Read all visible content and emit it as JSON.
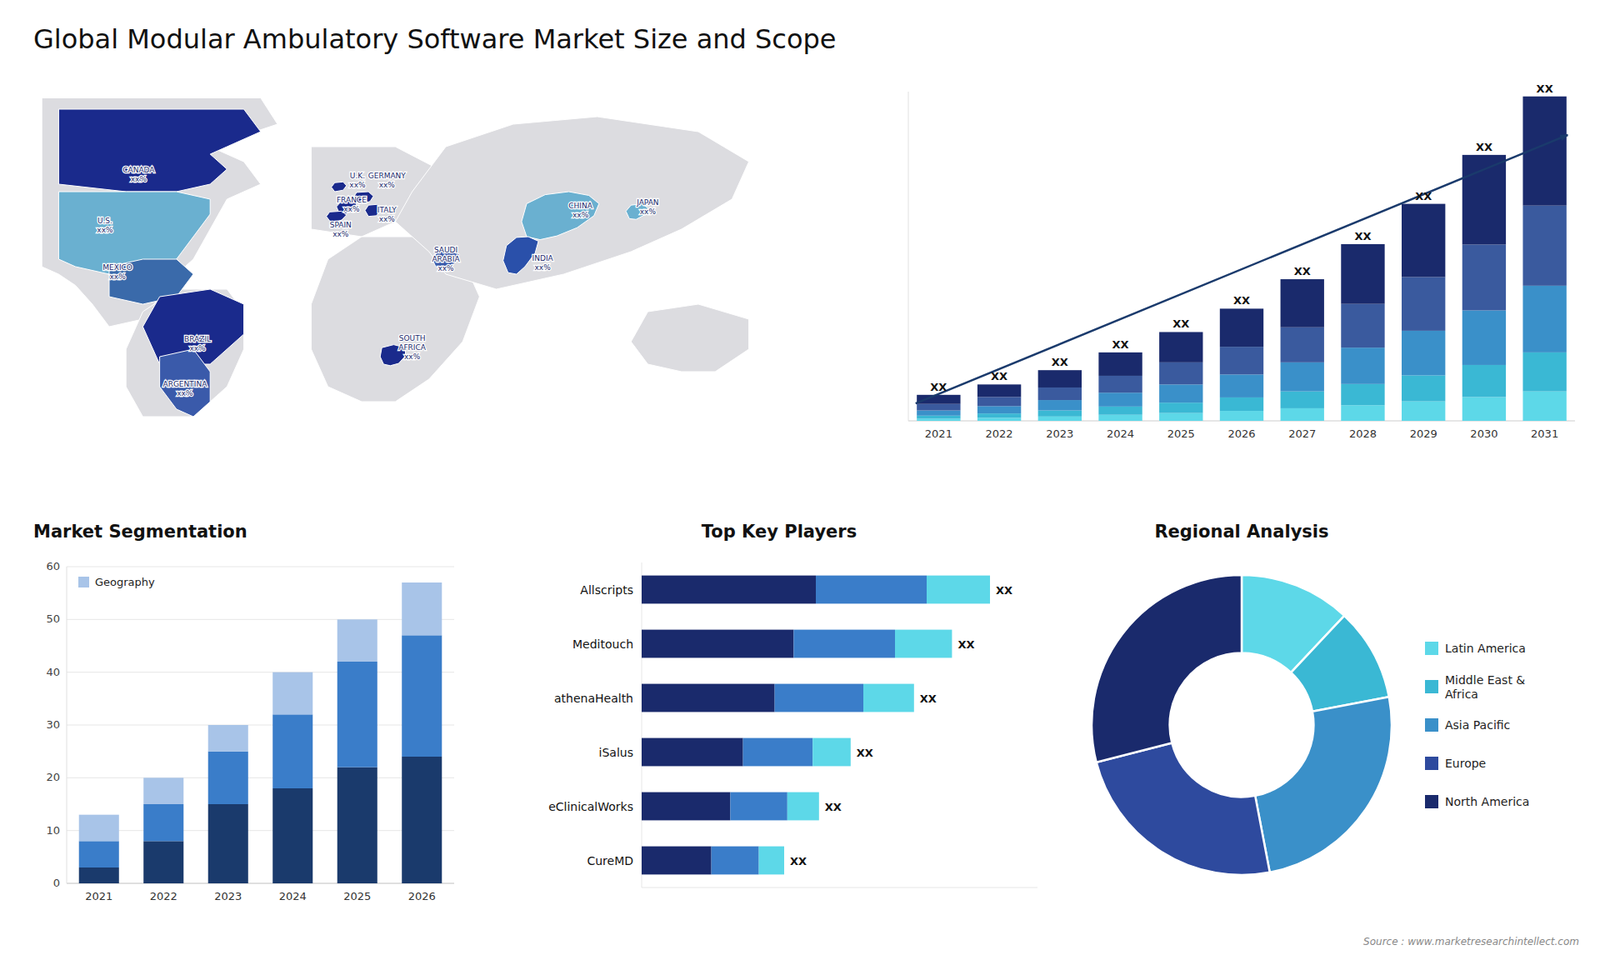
{
  "title": "Global Modular Ambulatory Software Market Size and Scope",
  "annotations": [
    "Source : www.marketresearchintellect.com"
  ],
  "chart_data": [
    {
      "type": "map",
      "labels": [
        "CANADA\nxx%",
        "U.S.\nxx%",
        "MEXICO\nxx%",
        "BRAZIL\nxx%",
        "ARGENTINA\nxx%",
        "U.K.\nxx%",
        "FRANCE\nxx%",
        "SPAIN\nxx%",
        "GERMANY\nxx%",
        "ITALY\nxx%",
        "SAUDI\nARABIA\nxx%",
        "SOUTH\nAFRICA\nxx%",
        "CHINA\nxx%",
        "INDIA\nxx%",
        "JAPAN\nxx%"
      ],
      "colors": [
        "#1a2a8c",
        "#6ab0d0",
        "#3a6aaa",
        "#1a2a8c",
        "#3a5aaa",
        "#1a2a8c",
        "#1a2a8c",
        "#1a2a8c",
        "#1a2a8c",
        "#1a2a8c",
        "#3a5aaa",
        "#1a2a8c",
        "#6ab0d0",
        "#2a50aa",
        "#6ab0d0"
      ]
    },
    {
      "type": "bar",
      "stacked": true,
      "categories": [
        2021,
        2022,
        2023,
        2024,
        2025,
        2026,
        2027,
        2028,
        2029,
        2030,
        2031
      ],
      "series": [
        {
          "color": "#5dd8e8",
          "values": [
            0.5,
            0.7,
            1.0,
            1.4,
            1.8,
            2.3,
            2.9,
            3.6,
            4.5,
            5.5,
            6.8
          ]
        },
        {
          "color": "#3ab8d4",
          "values": [
            0.7,
            1.0,
            1.4,
            1.9,
            2.4,
            3.1,
            3.9,
            4.9,
            6.0,
            7.4,
            9.0
          ]
        },
        {
          "color": "#3a90c9",
          "values": [
            1.2,
            1.7,
            2.4,
            3.2,
            4.2,
            5.3,
            6.7,
            8.4,
            10.3,
            12.6,
            15.4
          ]
        },
        {
          "color": "#3a5a9e",
          "values": [
            1.5,
            2.1,
            2.9,
            3.9,
            5.1,
            6.4,
            8.1,
            10.1,
            12.4,
            15.2,
            18.5
          ]
        },
        {
          "color": "#1a2a6c",
          "values": [
            2.1,
            2.9,
            4.0,
            5.4,
            7.0,
            8.8,
            11.1,
            13.8,
            16.9,
            20.7,
            25.2
          ]
        }
      ],
      "ylim": [
        0,
        76
      ],
      "tick_labels": "x",
      "grid": false,
      "value_labels": [
        "XX",
        "XX",
        "XX",
        "XX",
        "XX",
        "XX",
        "XX",
        "XX",
        "XX",
        "XX",
        "XX"
      ],
      "trend_arrow": {
        "x": [
          -0.38,
          10.38
        ],
        "y": [
          4,
          66
        ]
      }
    },
    {
      "type": "bar",
      "title": "Market Segmentation",
      "stacked": true,
      "categories": [
        2021,
        2022,
        2023,
        2024,
        2025,
        2026
      ],
      "series": [
        {
          "color": "#1a3a6c",
          "values": [
            3,
            8,
            15,
            18,
            22,
            24
          ]
        },
        {
          "color": "#3a7dc9",
          "values": [
            5,
            7,
            10,
            14,
            20,
            23
          ]
        },
        {
          "name": "Geography",
          "color": "#a8c4e8",
          "values": [
            5,
            5,
            5,
            8,
            8,
            10
          ]
        }
      ],
      "ylim": [
        0,
        60
      ],
      "yticks": [
        0,
        10,
        20,
        30,
        40,
        50,
        60
      ],
      "grid": true,
      "legend": "upper left"
    },
    {
      "type": "bar",
      "title": "Top Key Players",
      "orientation": "horizontal",
      "stacked": true,
      "categories": [
        "Allscripts",
        "Meditouch",
        "athenaHealth",
        "iSalus",
        "eClinicalWorks",
        "CureMD"
      ],
      "series": [
        {
          "color": "#1a2a6c",
          "values": [
            5.5,
            4.8,
            4.2,
            3.2,
            2.8,
            2.2
          ]
        },
        {
          "color": "#3a7dc9",
          "values": [
            3.5,
            3.2,
            2.8,
            2.2,
            1.8,
            1.5
          ]
        },
        {
          "color": "#5dd8e8",
          "values": [
            2.0,
            1.8,
            1.6,
            1.2,
            1.0,
            0.8
          ]
        }
      ],
      "xlim": [
        0,
        12.5
      ],
      "tick_labels": false,
      "value_labels": [
        "XX",
        "XX",
        "XX",
        "XX",
        "XX",
        "XX"
      ]
    },
    {
      "type": "donut",
      "title": "Regional Analysis",
      "labels": [
        "Latin America",
        "Middle East &\nAfrica",
        "Asia Pacific",
        "Europe",
        "North America"
      ],
      "values": [
        12,
        10,
        25,
        24,
        29
      ],
      "colors": [
        "#5dd8e8",
        "#3ab8d4",
        "#3a90c9",
        "#2e4a9e",
        "#1a2a6c"
      ],
      "legend": "right"
    }
  ]
}
